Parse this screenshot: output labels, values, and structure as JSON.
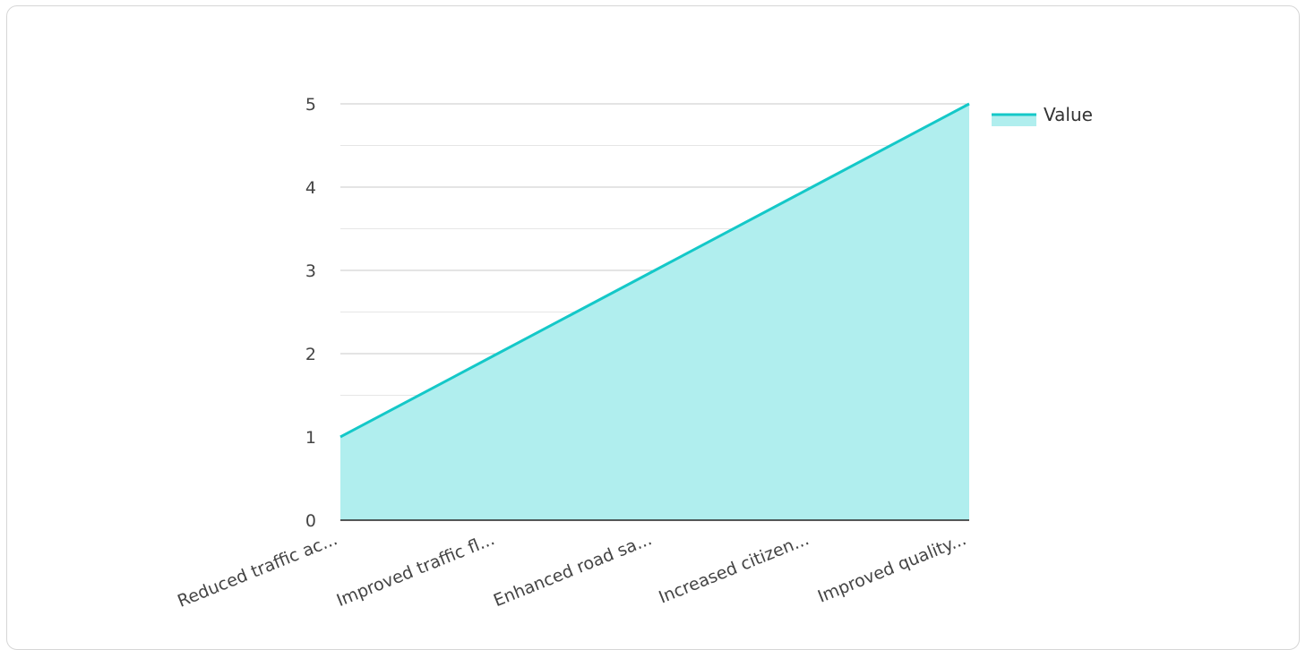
{
  "chart_data": {
    "type": "area",
    "categories": [
      "Reduced traffic ac...",
      "Improved traffic fl...",
      "Enhanced road sa...",
      "Increased citizen...",
      "Improved quality..."
    ],
    "series": [
      {
        "name": "Value",
        "values": [
          1,
          2,
          3,
          4,
          5
        ]
      }
    ],
    "yticks": [
      "0",
      "1",
      "2",
      "3",
      "4",
      "5"
    ],
    "ylim": [
      0,
      5
    ],
    "grid": true,
    "legend": "right",
    "colors": {
      "line": "#14c8c8",
      "fill": "#b0eeee",
      "grid_major": "#c8c8c8",
      "grid_minor": "#e6e6e6",
      "axis": "#222222"
    }
  }
}
